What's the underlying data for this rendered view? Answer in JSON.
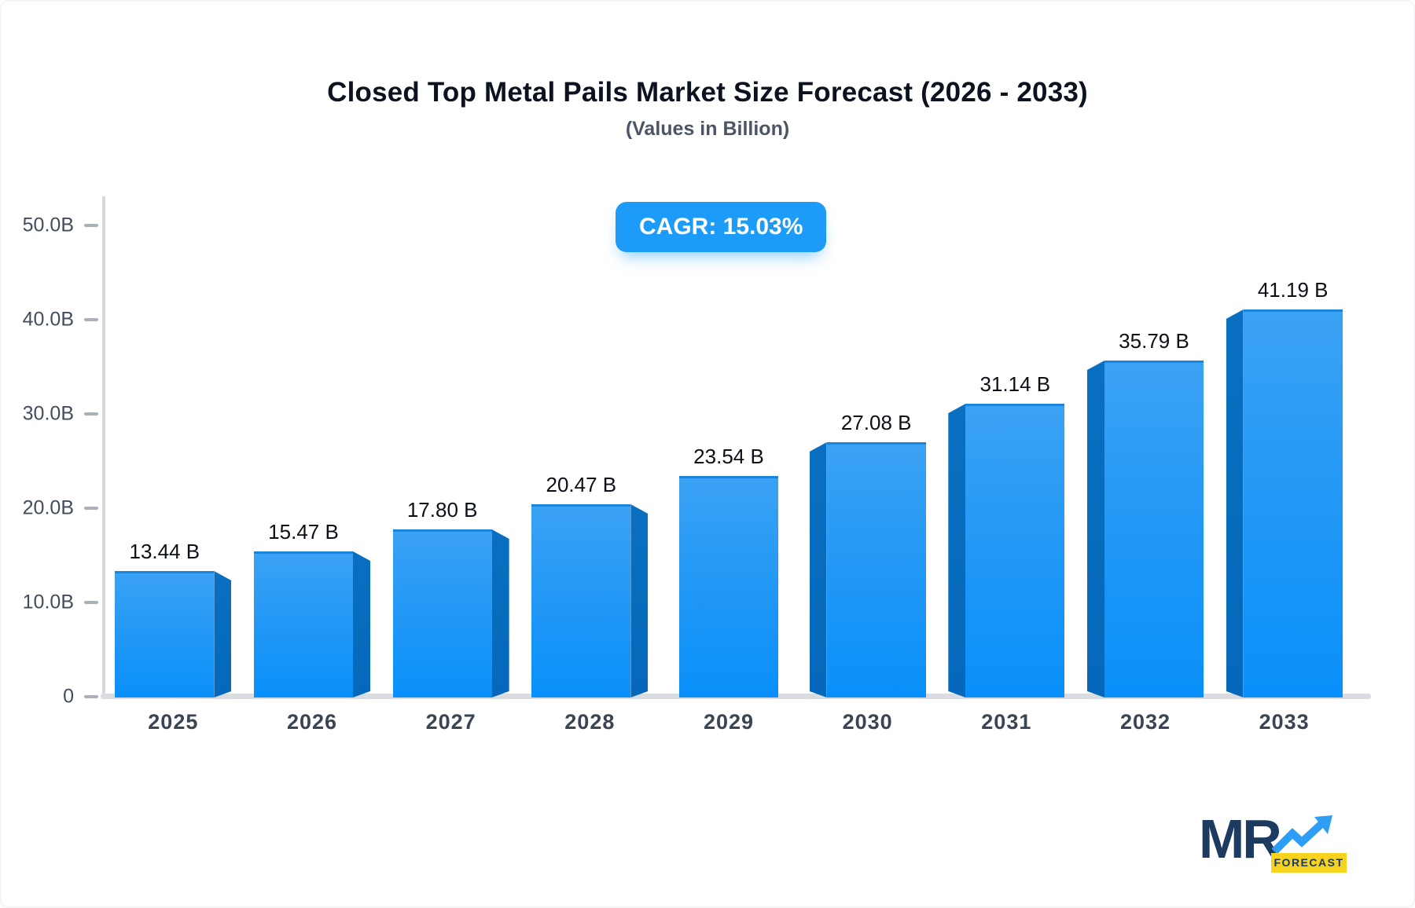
{
  "header": {
    "title": "Closed Top Metal Pails Market Size Forecast (2026 - 2033)",
    "subtitle": "(Values in Billion)"
  },
  "badge": {
    "label": "CAGR: 15.03%",
    "bg_color": "#1d9bf9",
    "text_color": "#ffffff"
  },
  "chart_data": {
    "type": "bar",
    "title": "Closed Top Metal Pails Market Size Forecast (2026 - 2033)",
    "subtitle": "(Values in Billion)",
    "cagr": "15.03%",
    "categories": [
      "2025",
      "2026",
      "2027",
      "2028",
      "2029",
      "2030",
      "2031",
      "2032",
      "2033"
    ],
    "values": [
      13.44,
      15.47,
      17.8,
      20.47,
      23.54,
      27.08,
      31.14,
      35.79,
      41.19
    ],
    "value_labels": [
      "13.44 B",
      "15.47 B",
      "17.80 B",
      "20.47 B",
      "23.54 B",
      "27.08 B",
      "31.14 B",
      "35.79 B",
      "41.19 B"
    ],
    "xlabel": "",
    "ylabel": "",
    "ylim": [
      0,
      50
    ],
    "yticks": [
      {
        "label": "50.0B",
        "value": 50
      },
      {
        "label": "40.0B",
        "value": 40
      },
      {
        "label": "30.0B",
        "value": 30
      },
      {
        "label": "20.0B",
        "value": 20
      },
      {
        "label": "10.0B",
        "value": 10
      },
      {
        "label": "0",
        "value": 0
      }
    ],
    "grid": false,
    "legend": "none",
    "bar_style": "3d-pseudo-perspective",
    "colors": {
      "bar_face_top": "#3ba2f4",
      "bar_face_bottom": "#0990fa",
      "bar_side": "#0568ba",
      "bar_top_edge": "#1b84dd",
      "axis_line": "#d5d9df",
      "baseline": "#d9dce1",
      "tick_dash": "#a9b0ba",
      "y_label": "#414d5f",
      "x_label": "#3a4553",
      "value_label": "#0b0f17"
    }
  },
  "logo": {
    "mr_text": "MR",
    "forecast_text": "FORECAST",
    "navy": "#1d3a61",
    "yellow": "#f7d21e",
    "arrow_blue": "#2e9df5"
  }
}
